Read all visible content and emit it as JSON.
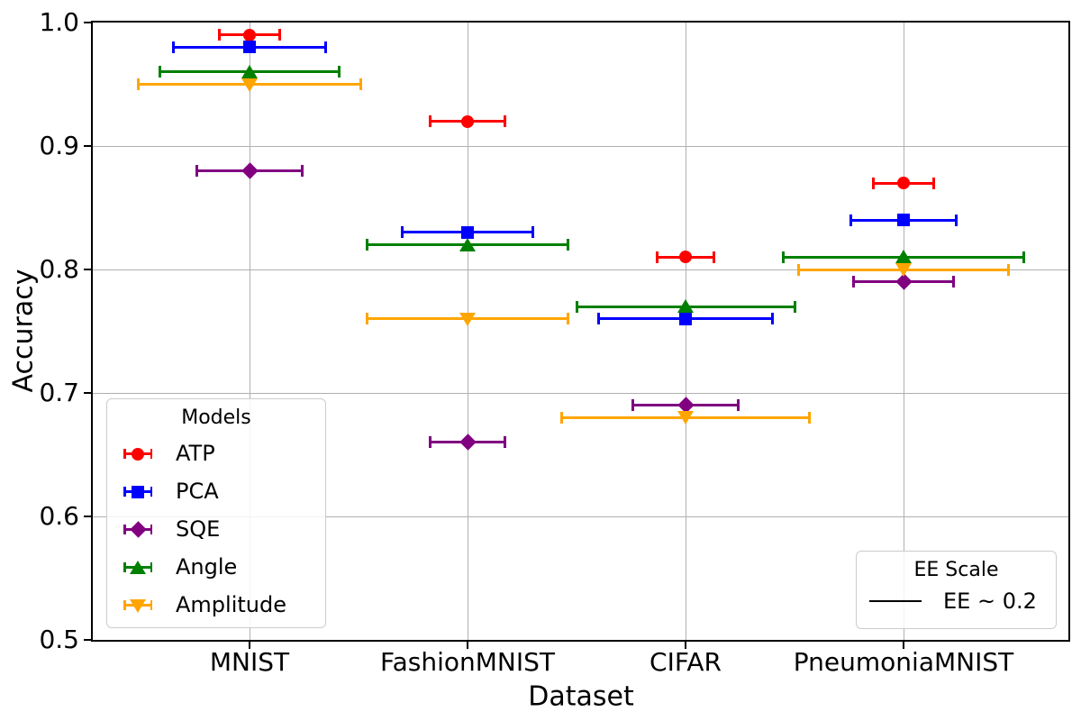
{
  "chart_data": {
    "type": "scatter",
    "subtype": "errorbar-horizontal",
    "title": "",
    "xlabel": "Dataset",
    "ylabel": "Accuracy",
    "categories": [
      "MNIST",
      "FashionMNIST",
      "CIFAR",
      "PneumoniaMNIST"
    ],
    "ylim": [
      0.5,
      1.0
    ],
    "yticks": [
      1.0,
      0.9,
      0.8,
      0.7,
      0.6,
      0.5
    ],
    "ytick_labels": [
      "1.0",
      "0.9",
      "0.8",
      "0.7",
      "0.6",
      "0.5"
    ],
    "grid": true,
    "series": [
      {
        "name": "ATP",
        "color": "#ff0000",
        "marker": "circle",
        "accuracy": [
          0.99,
          0.92,
          0.81,
          0.87
        ],
        "ee": [
          0.14,
          0.17,
          0.13,
          0.14
        ]
      },
      {
        "name": "PCA",
        "color": "#0000ff",
        "marker": "square",
        "accuracy": [
          0.98,
          0.83,
          0.76,
          0.84
        ],
        "ee": [
          0.35,
          0.3,
          0.4,
          0.24
        ]
      },
      {
        "name": "SQE",
        "color": "#800080",
        "marker": "diamond",
        "accuracy": [
          0.88,
          0.66,
          0.69,
          0.79
        ],
        "ee": [
          0.24,
          0.17,
          0.24,
          0.23
        ]
      },
      {
        "name": "Angle",
        "color": "#008000",
        "marker": "tri-up",
        "accuracy": [
          0.96,
          0.82,
          0.77,
          0.81
        ],
        "ee": [
          0.41,
          0.46,
          0.5,
          0.55
        ]
      },
      {
        "name": "Amplitude",
        "color": "#ffa500",
        "marker": "tri-down",
        "accuracy": [
          0.95,
          0.76,
          0.68,
          0.8
        ],
        "ee": [
          0.51,
          0.46,
          0.57,
          0.48
        ]
      }
    ],
    "legends": {
      "models": {
        "title": "Models"
      },
      "ee": {
        "title": "EE Scale",
        "label": "EE ~ 0.2"
      }
    },
    "colors": {
      "gridline": "#b0b0b0",
      "axis": "#000000",
      "ee_reference_line": "#000000"
    }
  }
}
